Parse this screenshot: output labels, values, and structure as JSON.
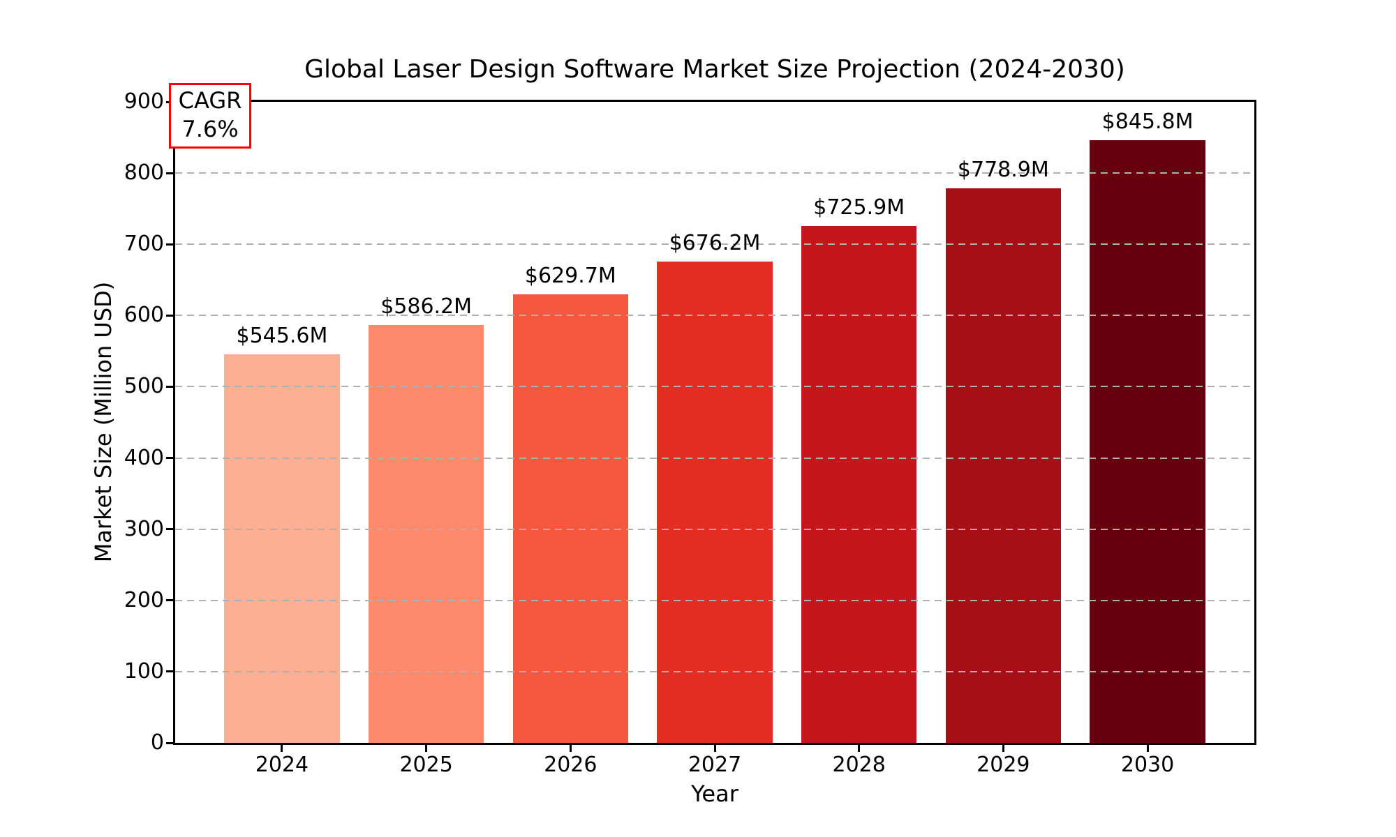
{
  "chart_data": {
    "type": "bar",
    "title": "Global Laser Design Software Market Size Projection (2024-2030)",
    "xlabel": "Year",
    "ylabel": "Market Size (Million USD)",
    "categories": [
      "2024",
      "2025",
      "2026",
      "2027",
      "2028",
      "2029",
      "2030"
    ],
    "values": [
      545.6,
      586.2,
      629.7,
      676.2,
      725.9,
      778.9,
      845.8
    ],
    "bar_labels": [
      "$545.6M",
      "$586.2M",
      "$629.7M",
      "$676.2M",
      "$725.9M",
      "$778.9M",
      "$845.8M"
    ],
    "bar_colors": [
      "#FCAF92",
      "#FC8A6B",
      "#F6573F",
      "#E32D23",
      "#C5161C",
      "#A50F15",
      "#67000D"
    ],
    "ylim": [
      0,
      900
    ],
    "yticks": [
      0,
      100,
      200,
      300,
      400,
      500,
      600,
      700,
      800,
      900
    ],
    "gridlines": [
      100,
      200,
      300,
      400,
      500,
      600,
      700,
      800
    ],
    "grid_style": "dashed",
    "grid_color": "#B0B0B0",
    "axis_color": "#000000",
    "legend": "none",
    "annotation": {
      "lines": [
        "CAGR",
        "7.6%"
      ],
      "border_color": "#FF0000",
      "text_color": "#000000",
      "background": "#FFFFFF"
    }
  }
}
